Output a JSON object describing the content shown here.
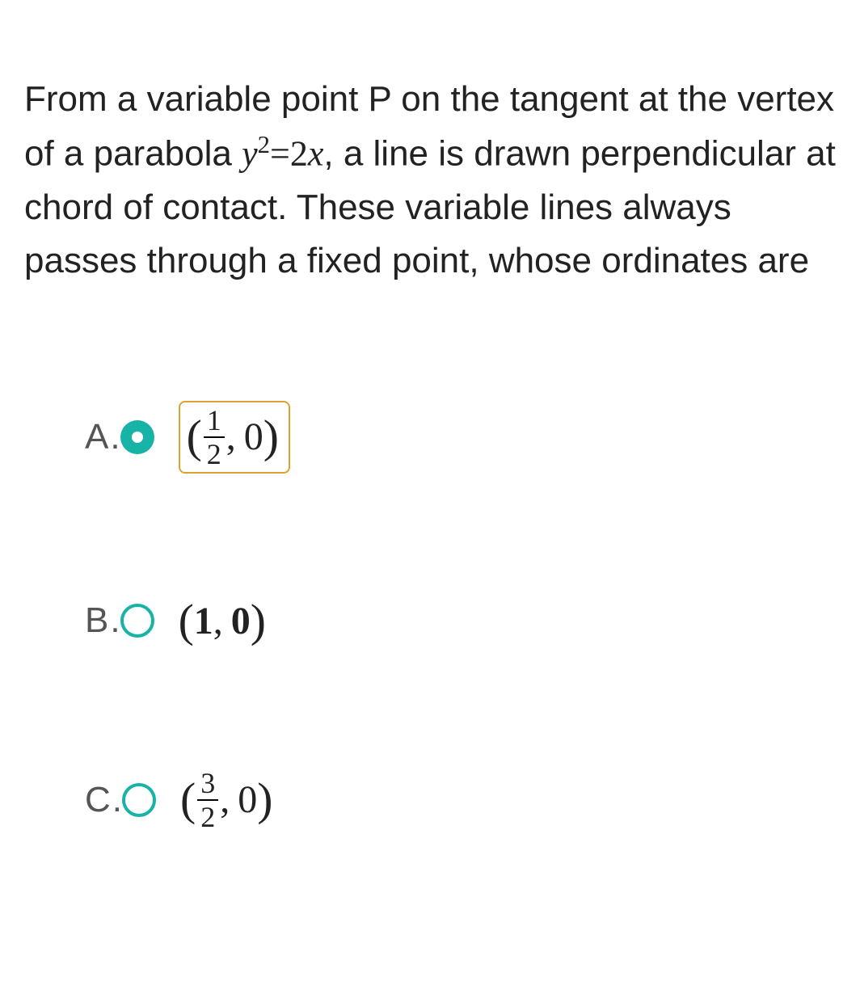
{
  "question": {
    "pre": "From a variable point P on the tangent at the vertex of a parabola ",
    "eq_var": "y",
    "eq_sup": "2",
    "eq_eq": "=",
    "eq_coef": "2",
    "eq_x": "x",
    "post": ", a line is drawn perpendicular at chord of contact. These variable lines always passes through a fixed point, whose ordinates are"
  },
  "options": [
    {
      "letter": "A",
      "selected": true,
      "highlighted": true,
      "type": "frac",
      "num": "1",
      "den": "2",
      "second": "0"
    },
    {
      "letter": "B",
      "selected": false,
      "highlighted": false,
      "type": "plain",
      "first": "1",
      "second": "0"
    },
    {
      "letter": "C",
      "selected": false,
      "highlighted": false,
      "type": "frac",
      "num": "3",
      "den": "2",
      "second": "0"
    }
  ],
  "colors": {
    "accent": "#17b3a6",
    "highlight_border": "#e0a030",
    "text": "#222222",
    "background": "#ffffff"
  }
}
